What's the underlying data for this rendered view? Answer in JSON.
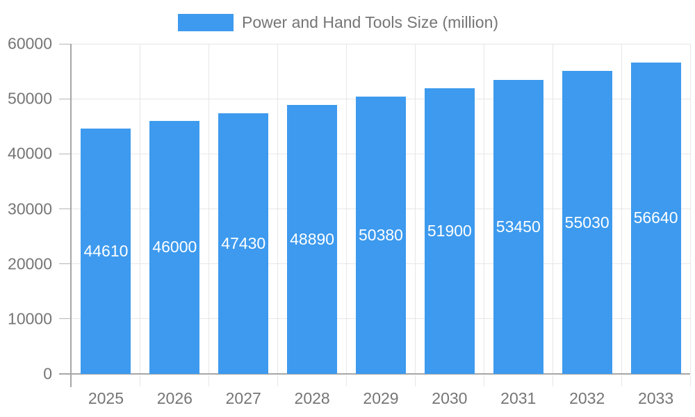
{
  "chart_data": {
    "type": "bar",
    "title": "Power and Hand Tools Size (million)",
    "legend_position": "top",
    "categories": [
      "2025",
      "2026",
      "2027",
      "2028",
      "2029",
      "2030",
      "2031",
      "2032",
      "2033"
    ],
    "series": [
      {
        "name": "Power and Hand Tools Size (million)",
        "values": [
          44610,
          46000,
          47430,
          48890,
          50380,
          51900,
          53450,
          55030,
          56640
        ]
      }
    ],
    "xlabel": "",
    "ylabel": "",
    "ylim": [
      0,
      60000
    ],
    "yticks": [
      0,
      10000,
      20000,
      30000,
      40000,
      50000,
      60000
    ],
    "grid": true,
    "value_labels": "centered-inside-bars",
    "colors": {
      "bar": "#3D9AEE",
      "bar_value_label": "#ffffff",
      "axis_text": "#757575",
      "gridline": "#e6e6e6",
      "tick_stub": "#b5b5b5",
      "axis_line": "#a6a6a6"
    }
  }
}
